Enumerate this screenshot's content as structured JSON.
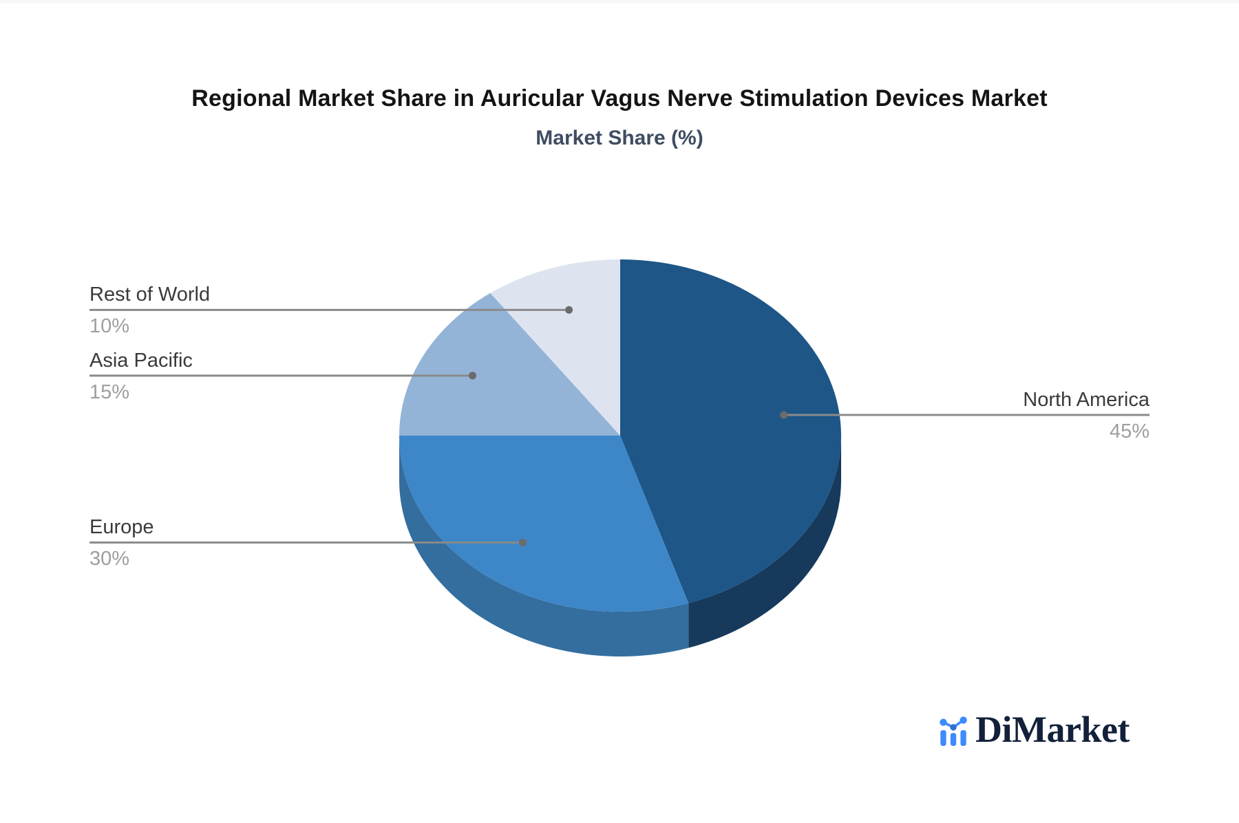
{
  "page": {
    "background": "#ffffff"
  },
  "chart_data": {
    "type": "pie",
    "title": "Regional Market Share in Auricular Vagus Nerve Stimulation Devices Market",
    "subtitle": "Market Share (%)",
    "unit": "%",
    "start_angle_deg": 0,
    "clockwise": true,
    "style": "3d",
    "slices": [
      {
        "label": "North America",
        "value": 45,
        "color": "#1D5687",
        "side_color": "#16395C"
      },
      {
        "label": "Europe",
        "value": 30,
        "color": "#3D87C9",
        "side_color": "#346E9F"
      },
      {
        "label": "Asia Pacific",
        "value": 15,
        "color": "#93B4D7",
        "side_color": "#7EA2C7"
      },
      {
        "label": "Rest of World",
        "value": 10,
        "color": "#DDE4EF",
        "side_color": "#C2CEDF"
      }
    ],
    "callout": {
      "line_color": "#8A8A8A",
      "dot_color": "#6B6B6B",
      "label_color": "#3A3A3A",
      "percent_color": "#9E9E9E"
    }
  },
  "branding": {
    "text": "DiMarket",
    "icon": "bar-line-chart-icon",
    "icon_color": "#3D8BFD",
    "icon_accent_color": "#2E6FD0",
    "text_color": "#13203A"
  }
}
